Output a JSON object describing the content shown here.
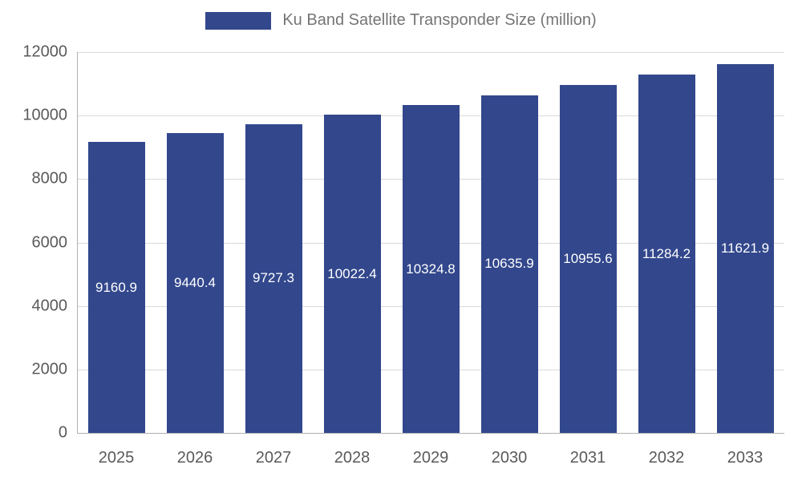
{
  "accent_color": "#32478c",
  "chart_data": {
    "type": "bar",
    "title": "Ku Band Satellite Transponder Size (million)",
    "categories": [
      "2025",
      "2026",
      "2027",
      "2028",
      "2029",
      "2030",
      "2031",
      "2032",
      "2033"
    ],
    "values": [
      9160.9,
      9440.4,
      9727.3,
      10022.4,
      10324.8,
      10635.9,
      10955.6,
      11284.2,
      11621.9
    ],
    "value_labels": [
      "9160.9",
      "9440.4",
      "9727.3",
      "10022.4",
      "10324.8",
      "10635.9",
      "10955.6",
      "11284.2",
      "11621.9"
    ],
    "xlabel": "",
    "ylabel": "",
    "ylim": [
      0,
      12000
    ],
    "yticks": [
      "0",
      "2000",
      "4000",
      "6000",
      "8000",
      "10000",
      "12000"
    ],
    "grid": "horizontal",
    "legend_position": "top-center",
    "bar_color": "#32478c",
    "value_label_color": "#ffffff"
  }
}
